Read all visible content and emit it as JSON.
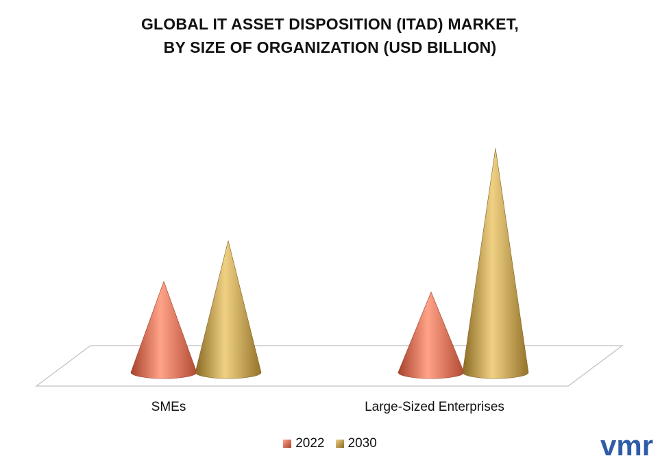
{
  "title_lines": [
    "GLOBAL IT ASSET DISPOSITION (ITAD) MARKET,",
    "BY SIZE OF ORGANIZATION (USD BILLION)"
  ],
  "colors": {
    "s2022": "#e07a5f",
    "s2030": "#c9a24a",
    "floor_line": "#bfbfbf"
  },
  "chart_data": {
    "type": "bar",
    "subtype": "3d-cone",
    "title": "GLOBAL IT ASSET DISPOSITION (ITAD) MARKET, BY SIZE OF ORGANIZATION (USD BILLION)",
    "categories": [
      "SMEs",
      "Large-Sized Enterprises"
    ],
    "series": [
      {
        "name": "2022",
        "values": [
          6.9,
          6.1
        ]
      },
      {
        "name": "2030",
        "values": [
          10.0,
          17.0
        ]
      }
    ],
    "ylim": [
      0,
      18
    ],
    "grid": false,
    "legend": "bottom"
  },
  "legend": {
    "item1": "2022",
    "item2": "2030"
  },
  "logo": {
    "text": "vmr"
  }
}
